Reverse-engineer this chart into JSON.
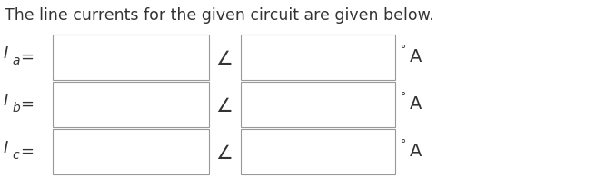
{
  "title": "The line currents for the given circuit are given below.",
  "rows": [
    {
      "label": "I",
      "subscript": "a"
    },
    {
      "label": "I",
      "subscript": "b"
    },
    {
      "label": "I",
      "subscript": "c"
    }
  ],
  "title_fontsize": 12.5,
  "label_fontsize": 13,
  "box_color": "#ffffff",
  "box_edge_color": "#999999",
  "background_color": "#ffffff",
  "text_color": "#333333",
  "angle_symbol": "∠",
  "degree_symbol": "°",
  "unit": "A",
  "fig_width": 6.67,
  "fig_height": 2.08,
  "dpi": 100
}
